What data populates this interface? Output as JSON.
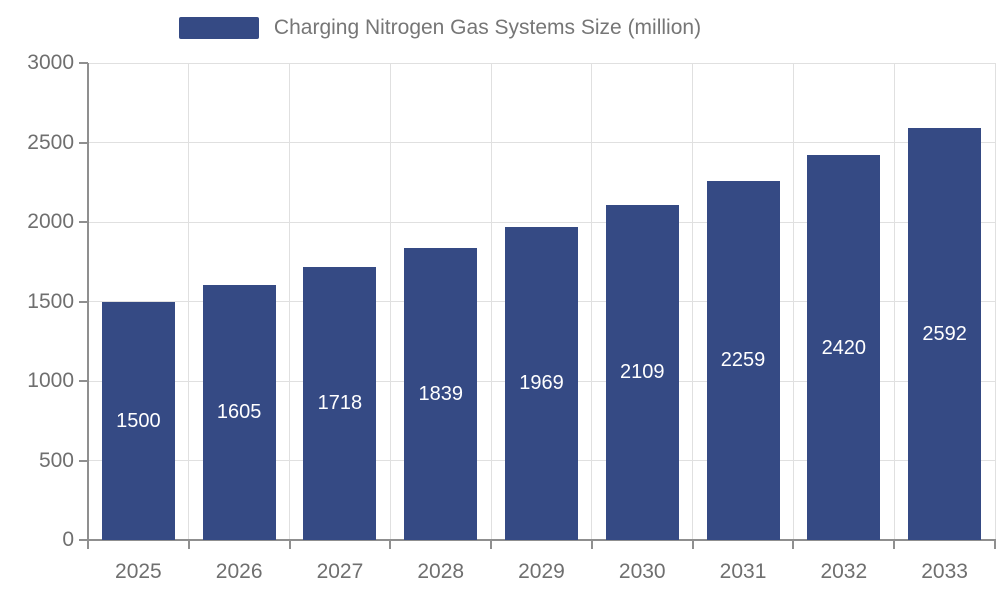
{
  "legend": {
    "label": "Charging Nitrogen Gas Systems Size (million)"
  },
  "colors": {
    "bar": "#354a84",
    "axis": "#8f8f8f",
    "grid": "#e0e0e0",
    "axis_label": "#6f6f6f",
    "legend_text": "#767676",
    "value_label": "#ffffff",
    "background": "#ffffff"
  },
  "chart_data": {
    "type": "bar",
    "title": "Charging Nitrogen Gas Systems Size (million)",
    "categories": [
      "2025",
      "2026",
      "2027",
      "2028",
      "2029",
      "2030",
      "2031",
      "2032",
      "2033"
    ],
    "series": [
      {
        "name": "Charging Nitrogen Gas Systems Size (million)",
        "values": [
          1500,
          1605,
          1718,
          1839,
          1969,
          2109,
          2259,
          2420,
          2592
        ]
      }
    ],
    "xlabel": "",
    "ylabel": "",
    "ylim": [
      0,
      3000
    ],
    "yticks": [
      0,
      500,
      1000,
      1500,
      2000,
      2500,
      3000
    ],
    "grid": true,
    "legend_position": "top",
    "value_labels_position": "inside-center"
  }
}
